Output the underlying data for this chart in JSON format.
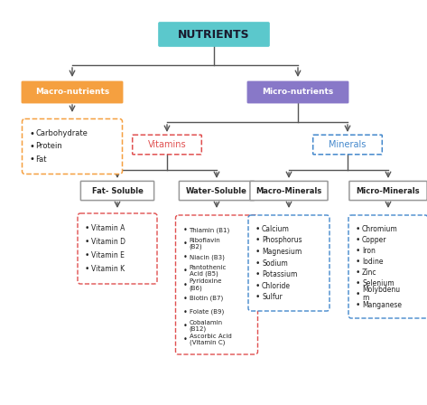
{
  "title": "NUTRIENTS",
  "title_bg": "#5BC8CC",
  "macro_label": "Macro-nutrients",
  "macro_bg": "#F5A040",
  "micro_label": "Micro-nutrients",
  "micro_bg": "#8878C8",
  "vitamins_label": "Vitamins",
  "vitamins_color": "#E05050",
  "minerals_label": "Minerals",
  "minerals_color": "#4488CC",
  "fat_soluble_label": "Fat- Soluble",
  "water_soluble_label": "Water-Soluble",
  "macro_minerals_label": "Macro-Minerals",
  "micro_minerals_label": "Micro-Minerals",
  "macro_items": [
    "Carbohydrate",
    "Protein",
    "Fat"
  ],
  "fat_soluble_items": [
    "Vitamin A",
    "Vitamin D",
    "Vitamin E",
    "Vitamin K"
  ],
  "water_soluble_items": [
    "Thiamin (B1)",
    "Riboflavin\n(B2)",
    "Niacin (B3)",
    "Pantothenic\nAcid (B5)",
    "Pyridoxine\n(B6)",
    "Biotin (B7)",
    "Folate (B9)",
    "Cobalamin\n(B12)",
    "Ascorbic Acid\n(Vitamin C)"
  ],
  "macro_minerals_items": [
    "Calcium",
    "Phosphorus",
    "Magnesium",
    "Sodium",
    "Potassium",
    "Chloride",
    "Sulfur"
  ],
  "micro_minerals_items": [
    "Chromium",
    "Copper",
    "Iron",
    "Iodine",
    "Zinc",
    "Selenium",
    "Molybdenu\nm",
    "Manganese"
  ],
  "bg_color": "#FFFFFF",
  "line_color": "#555555"
}
